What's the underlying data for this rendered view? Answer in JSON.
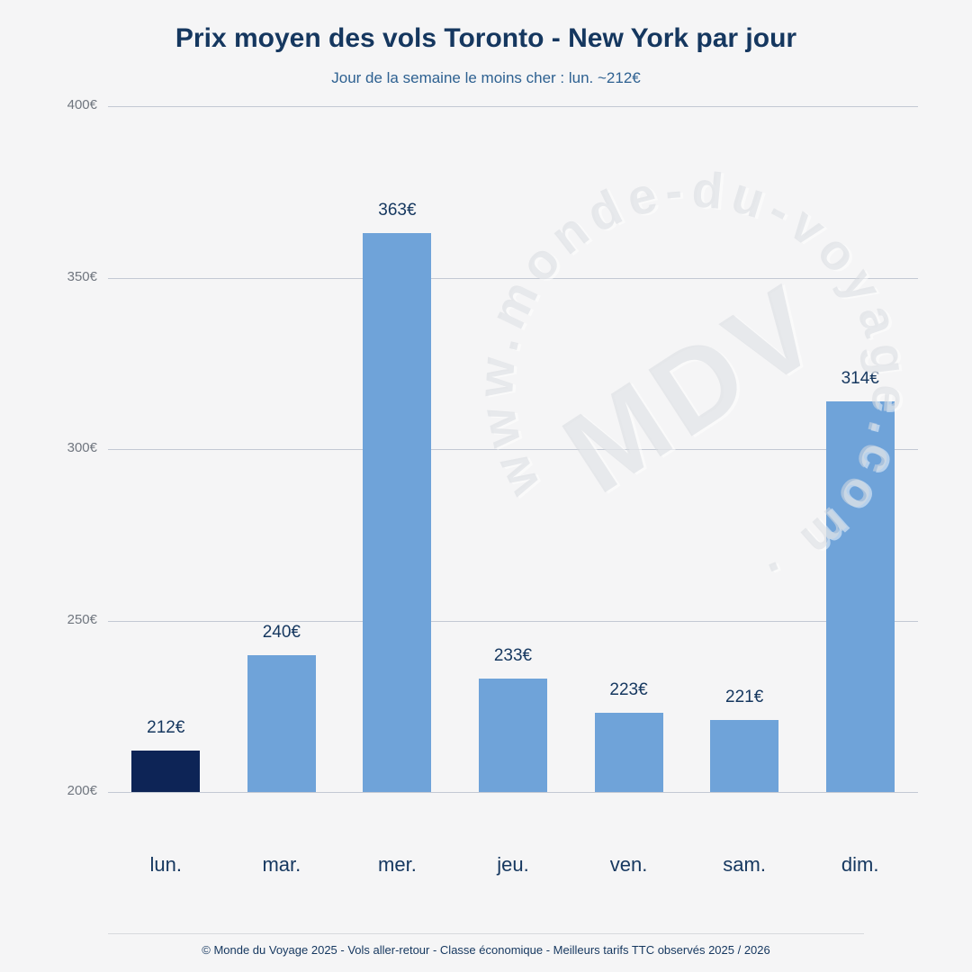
{
  "title": "Prix moyen des vols Toronto - New York par jour",
  "subtitle": "Jour de la semaine le moins cher : lun. ~212€",
  "footer": "© Monde du Voyage 2025 - Vols aller-retour - Classe économique - Meilleurs tarifs TTC observés 2025 / 2026",
  "watermark": {
    "ring_text": "www.monde-du-voyage.com ·",
    "center_text": "MDV"
  },
  "colors": {
    "background": "#f5f5f6",
    "bar": "#6fa3d9",
    "bar_highlight": "#0d2456",
    "title": "#15375f",
    "subtitle": "#2e6191",
    "grid": "#c3c9d3",
    "ytick": "#70767f"
  },
  "chart_data": {
    "type": "bar",
    "title": "Prix moyen des vols Toronto - New York par jour",
    "subtitle": "Jour de la semaine le moins cher : lun. ~212€",
    "categories": [
      "lun.",
      "mar.",
      "mer.",
      "jeu.",
      "ven.",
      "sam.",
      "dim."
    ],
    "values": [
      212,
      240,
      363,
      233,
      223,
      221,
      314
    ],
    "value_labels": [
      "212€",
      "240€",
      "363€",
      "233€",
      "223€",
      "221€",
      "314€"
    ],
    "highlight_index": 0,
    "xlabel": "",
    "ylabel": "",
    "ylim": [
      200,
      400
    ],
    "yticks": [
      200,
      250,
      300,
      350,
      400
    ],
    "ytick_labels": [
      "200€",
      "250€",
      "300€",
      "350€",
      "400€"
    ],
    "grid": true,
    "legend": "none"
  }
}
